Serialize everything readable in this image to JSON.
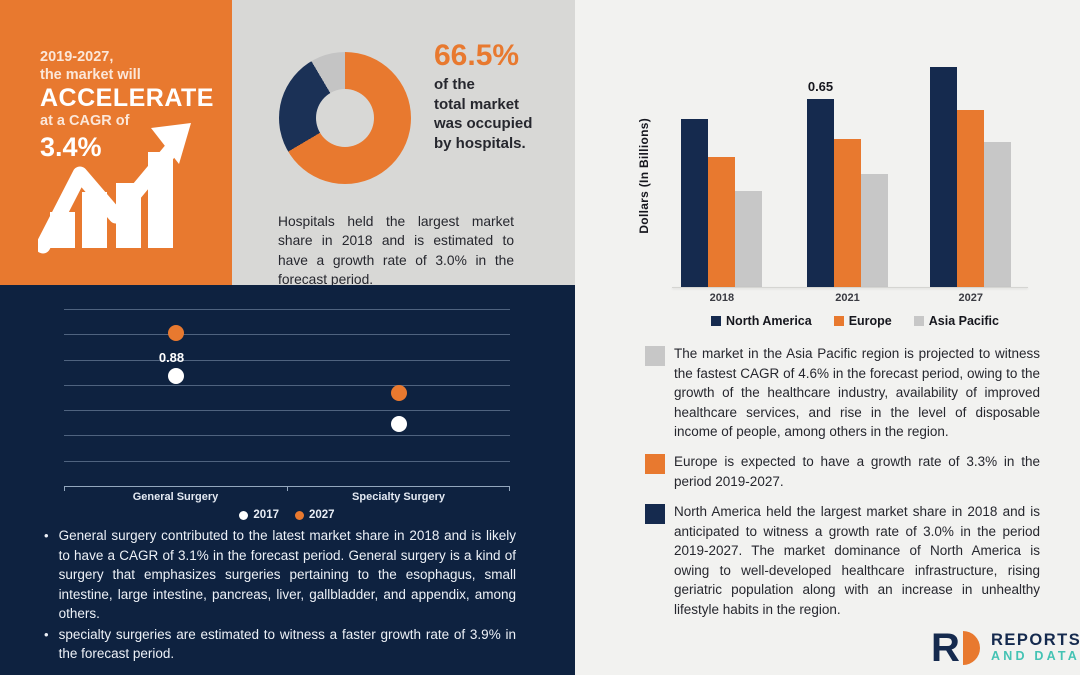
{
  "colors": {
    "orange": "#E8792F",
    "navy": "#152A4E",
    "navy_panel": "#0E2240",
    "gray_panel": "#D8D8D6",
    "right_bg": "#F2F2F0",
    "gray_series": "#C7C7C7",
    "charcoal": "#26272E",
    "teal": "#44C3B4",
    "white": "#FFFFFF"
  },
  "accelerate_card": {
    "line1": "2019-2027,",
    "line2": "the market will",
    "emphasis": "ACCELERATE",
    "line3": "at a CAGR of",
    "cagr": "3.4%"
  },
  "hospital_card": {
    "stat": "66.5%",
    "caption": [
      "of the",
      "total market",
      "was occupied",
      "by hospitals."
    ],
    "paragraph": "Hospitals held the largest market share in 2018 and is estimated to have a growth rate of 3.0% in the forecast period."
  },
  "surgery_panel": {
    "bullets": [
      "General surgery contributed to the latest market share in 2018 and is likely to have a CAGR of 3.1% in the forecast period. General surgery is a kind of surgery that emphasizes surgeries pertaining to the esophagus, small intestine, large intestine, pancreas, liver, gallbladder, and appendix, among others.",
      "specialty surgeries are estimated to witness a faster growth rate of 3.9% in the forecast period."
    ],
    "bullet_marker": "•"
  },
  "regional_bullets": [
    {
      "swatch": "gray_series",
      "text": "The market in the Asia Pacific region is projected to witness the fastest CAGR of 4.6% in the forecast period, owing to the growth of the healthcare industry, availability of improved healthcare services, and rise in the level of disposable income of people, among others in the region."
    },
    {
      "swatch": "orange",
      "text": "Europe is expected to have a growth rate of 3.3% in the period 2019-2027."
    },
    {
      "swatch": "navy",
      "text": "North America held the largest market share in 2018 and is anticipated to witness a growth rate of 3.0% in the period 2019-2027. The market dominance of North America is owing to well-developed healthcare infrastructure, rising geriatric population along with an increase in unhealthy lifestyle habits in the region."
    }
  ],
  "logo": {
    "monogram_r": "R",
    "line1": "REPORTS",
    "line2": "AND DATA"
  },
  "chart_data": [
    {
      "type": "pie",
      "title": "Hospitals share of total market, 2018",
      "donut": true,
      "slices": [
        {
          "label": "Hospitals",
          "value": 66.5,
          "color": "#E8792F"
        },
        {
          "label": "",
          "value": 25.0,
          "color": "#1B3156"
        },
        {
          "label": "",
          "value": 8.5,
          "color": "#C4C4C4"
        }
      ],
      "data_labels": [
        "66.5%"
      ]
    },
    {
      "type": "scatter",
      "title": "Surgery type market size, 2017 vs 2027",
      "categories": [
        "General Surgery",
        "Specialty Surgery"
      ],
      "cat_x": [
        0.25,
        0.75
      ],
      "series": [
        {
          "name": "2017",
          "color": "#FFFFFF",
          "values": [
            0.88,
            0.5
          ]
        },
        {
          "name": "2027",
          "color": "#E8792F",
          "values": [
            1.22,
            0.74
          ]
        }
      ],
      "ylim": [
        0,
        1.4
      ],
      "y_step": 0.2,
      "grid": true,
      "legend_position": "bottom",
      "annotations": [
        {
          "text": "0.88",
          "category": "General Surgery",
          "series": "2017"
        }
      ]
    },
    {
      "type": "bar",
      "title": "Regional market size",
      "categories": [
        "2018",
        "2021",
        "2027"
      ],
      "cat_x": [
        0.125,
        0.5,
        0.868
      ],
      "series": [
        {
          "name": "North America",
          "color": "#152A4E",
          "values": [
            0.58,
            0.65,
            0.76
          ]
        },
        {
          "name": "Europe",
          "color": "#E8792F",
          "values": [
            0.45,
            0.51,
            0.61
          ]
        },
        {
          "name": "Asia Pacific",
          "color": "#C7C7C7",
          "values": [
            0.33,
            0.39,
            0.5
          ]
        }
      ],
      "xlabel": "",
      "ylabel": "Dollars (In Billions)",
      "ylim": [
        0,
        0.8
      ],
      "grid": false,
      "legend_position": "bottom",
      "annotations": [
        {
          "text": "0.65",
          "category": "2021",
          "series": "North America"
        }
      ]
    }
  ]
}
